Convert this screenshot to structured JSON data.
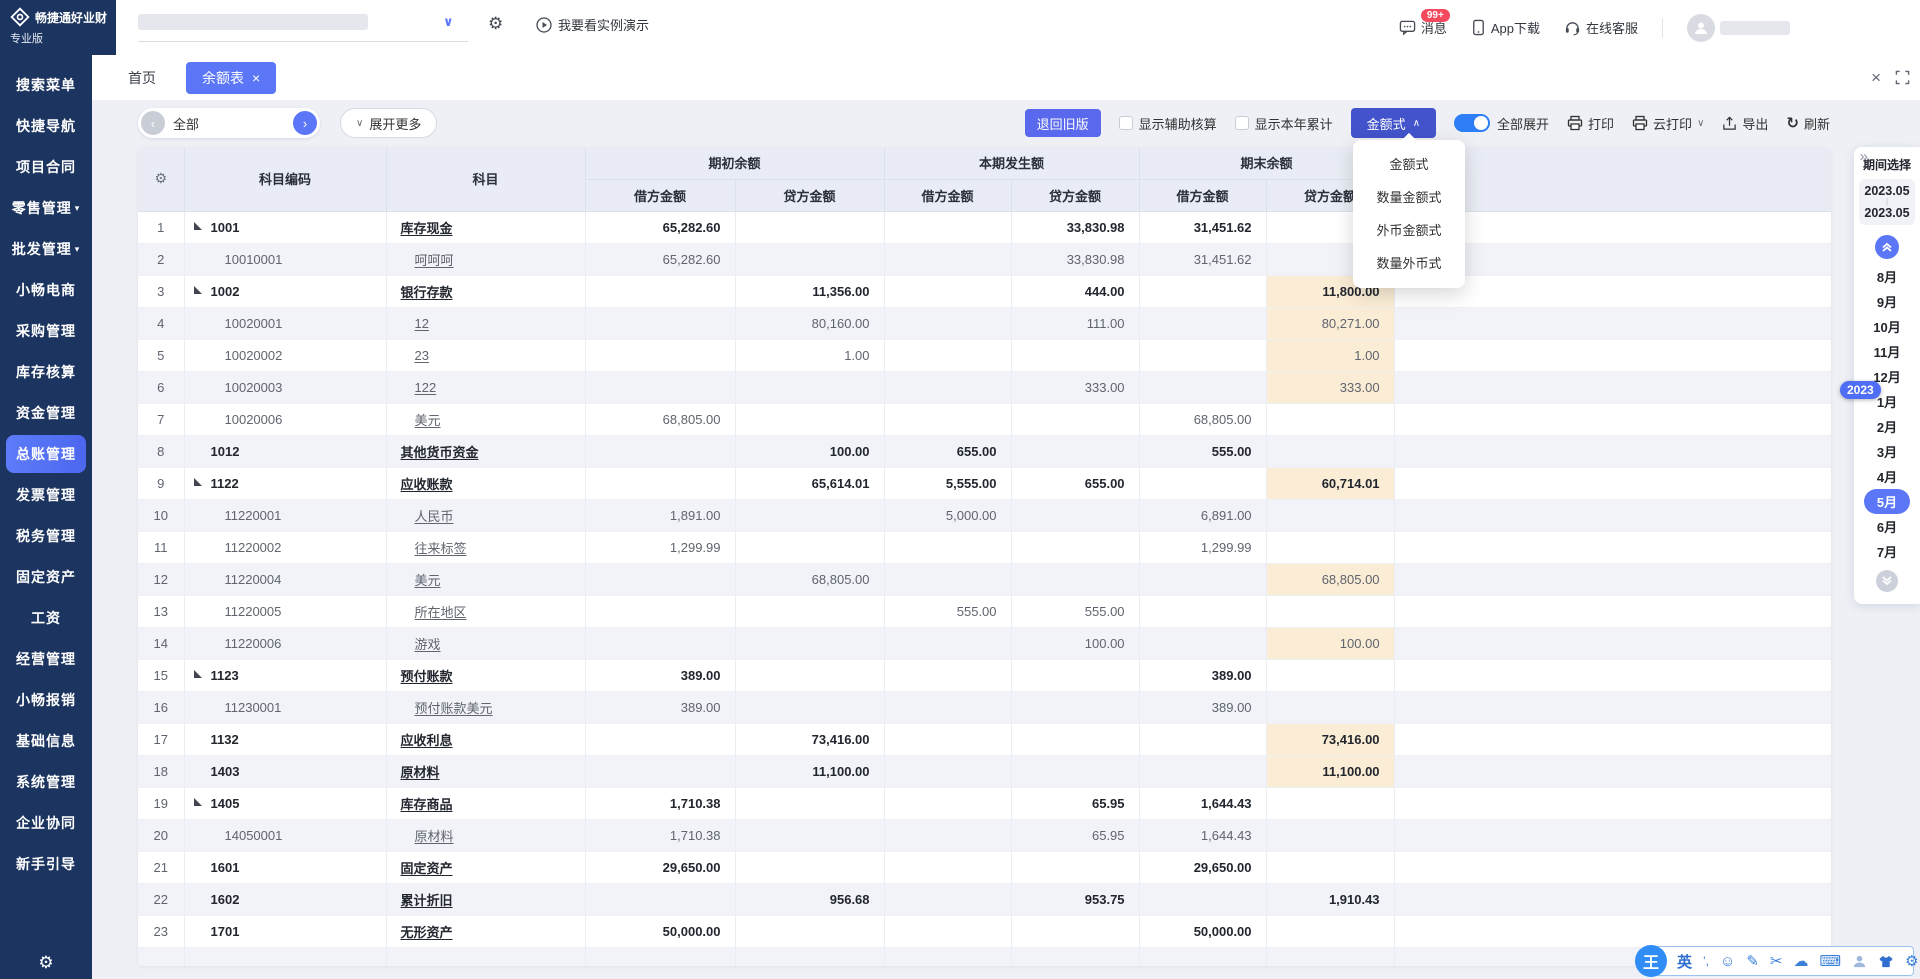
{
  "app": {
    "name": "畅捷通好业财",
    "edition": "专业版"
  },
  "topbar": {
    "demo_text": "我要看实例演示",
    "messages_label": "消息",
    "messages_badge": "99+",
    "app_download_label": "App下载",
    "support_label": "在线客服"
  },
  "sidebar": {
    "items": [
      {
        "label": "搜索菜单"
      },
      {
        "label": "快捷导航"
      },
      {
        "label": "项目合同"
      },
      {
        "label": "零售管理",
        "arrow": true
      },
      {
        "label": "批发管理",
        "arrow": true
      },
      {
        "label": "小畅电商"
      },
      {
        "label": "采购管理"
      },
      {
        "label": "库存核算"
      },
      {
        "label": "资金管理"
      },
      {
        "label": "总账管理",
        "active": true
      },
      {
        "label": "发票管理"
      },
      {
        "label": "税务管理"
      },
      {
        "label": "固定资产"
      },
      {
        "label": "工资"
      },
      {
        "label": "经营管理"
      },
      {
        "label": "小畅报销"
      },
      {
        "label": "基础信息"
      },
      {
        "label": "系统管理"
      },
      {
        "label": "企业协同"
      },
      {
        "label": "新手引导"
      }
    ]
  },
  "tabs": [
    {
      "label": "首页",
      "active": false,
      "closable": false
    },
    {
      "label": "余额表",
      "active": true,
      "closable": true
    }
  ],
  "toolbar": {
    "scope_value": "全部",
    "expand_more": "展开更多",
    "back_to_old": "退回旧版",
    "checkbox_aux": "显示辅助核算",
    "checkbox_ytd": "显示本年累计",
    "format_button": "金额式",
    "expand_all": "全部展开",
    "print": "打印",
    "cloud_print": "云打印",
    "export": "导出",
    "refresh": "刷新"
  },
  "format_menu": {
    "items": [
      "金额式",
      "数量金额式",
      "外币金额式",
      "数量外币式"
    ]
  },
  "balance_table": {
    "header": {
      "code": "科目编码",
      "subject": "科目",
      "groups": [
        "期初余额",
        "本期发生额",
        "期末余额"
      ],
      "debit": "借方金额",
      "credit": "贷方金额"
    },
    "rows": [
      {
        "no": 1,
        "code": "1001",
        "name": "库存现金",
        "parent": true,
        "expandable": true,
        "highlight": false,
        "values": [
          "65,282.60",
          "",
          "",
          "33,830.98",
          "31,451.62",
          ""
        ]
      },
      {
        "no": 2,
        "code": "10010001",
        "name": "呵呵呵",
        "parent": false,
        "expandable": false,
        "highlight": false,
        "values": [
          "65,282.60",
          "",
          "",
          "33,830.98",
          "31,451.62",
          ""
        ]
      },
      {
        "no": 3,
        "code": "1002",
        "name": "银行存款",
        "parent": true,
        "expandable": true,
        "highlight": true,
        "values": [
          "",
          "11,356.00",
          "",
          "444.00",
          "",
          "11,800.00"
        ]
      },
      {
        "no": 4,
        "code": "10020001",
        "name": "12",
        "parent": false,
        "expandable": false,
        "highlight": true,
        "values": [
          "",
          "80,160.00",
          "",
          "111.00",
          "",
          "80,271.00"
        ]
      },
      {
        "no": 5,
        "code": "10020002",
        "name": "23",
        "parent": false,
        "expandable": false,
        "highlight": true,
        "values": [
          "",
          "1.00",
          "",
          "",
          "",
          "1.00"
        ]
      },
      {
        "no": 6,
        "code": "10020003",
        "name": "122",
        "parent": false,
        "expandable": false,
        "highlight": true,
        "values": [
          "",
          "",
          "",
          "333.00",
          "",
          "333.00"
        ]
      },
      {
        "no": 7,
        "code": "10020006",
        "name": "美元",
        "parent": false,
        "expandable": false,
        "highlight": false,
        "values": [
          "68,805.00",
          "",
          "",
          "",
          "68,805.00",
          ""
        ]
      },
      {
        "no": 8,
        "code": "1012",
        "name": "其他货币资金",
        "parent": true,
        "expandable": false,
        "highlight": false,
        "values": [
          "",
          "100.00",
          "655.00",
          "",
          "555.00",
          ""
        ]
      },
      {
        "no": 9,
        "code": "1122",
        "name": "应收账款",
        "parent": true,
        "expandable": true,
        "highlight": true,
        "values": [
          "",
          "65,614.01",
          "5,555.00",
          "655.00",
          "",
          "60,714.01"
        ]
      },
      {
        "no": 10,
        "code": "11220001",
        "name": "人民币",
        "parent": false,
        "expandable": false,
        "highlight": false,
        "values": [
          "1,891.00",
          "",
          "5,000.00",
          "",
          "6,891.00",
          ""
        ]
      },
      {
        "no": 11,
        "code": "11220002",
        "name": "往来标签",
        "parent": false,
        "expandable": false,
        "highlight": false,
        "values": [
          "1,299.99",
          "",
          "",
          "",
          "1,299.99",
          ""
        ]
      },
      {
        "no": 12,
        "code": "11220004",
        "name": "美元",
        "parent": false,
        "expandable": false,
        "highlight": true,
        "values": [
          "",
          "68,805.00",
          "",
          "",
          "",
          "68,805.00"
        ]
      },
      {
        "no": 13,
        "code": "11220005",
        "name": "所在地区",
        "parent": false,
        "expandable": false,
        "highlight": false,
        "values": [
          "",
          "",
          "555.00",
          "555.00",
          "",
          ""
        ]
      },
      {
        "no": 14,
        "code": "11220006",
        "name": "游戏",
        "parent": false,
        "expandable": false,
        "highlight": true,
        "values": [
          "",
          "",
          "",
          "100.00",
          "",
          "100.00"
        ]
      },
      {
        "no": 15,
        "code": "1123",
        "name": "预付账款",
        "parent": true,
        "expandable": true,
        "highlight": false,
        "values": [
          "389.00",
          "",
          "",
          "",
          "389.00",
          ""
        ]
      },
      {
        "no": 16,
        "code": "11230001",
        "name": "预付账款美元",
        "parent": false,
        "expandable": false,
        "highlight": false,
        "values": [
          "389.00",
          "",
          "",
          "",
          "389.00",
          ""
        ]
      },
      {
        "no": 17,
        "code": "1132",
        "name": "应收利息",
        "parent": true,
        "expandable": false,
        "highlight": true,
        "values": [
          "",
          "73,416.00",
          "",
          "",
          "",
          "73,416.00"
        ]
      },
      {
        "no": 18,
        "code": "1403",
        "name": "原材料",
        "parent": true,
        "expandable": false,
        "highlight": true,
        "values": [
          "",
          "11,100.00",
          "",
          "",
          "",
          "11,100.00"
        ]
      },
      {
        "no": 19,
        "code": "1405",
        "name": "库存商品",
        "parent": true,
        "expandable": true,
        "highlight": false,
        "values": [
          "1,710.38",
          "",
          "",
          "65.95",
          "1,644.43",
          ""
        ]
      },
      {
        "no": 20,
        "code": "14050001",
        "name": "原材料",
        "parent": false,
        "expandable": false,
        "highlight": false,
        "values": [
          "1,710.38",
          "",
          "",
          "65.95",
          "1,644.43",
          ""
        ]
      },
      {
        "no": 21,
        "code": "1601",
        "name": "固定资产",
        "parent": true,
        "expandable": false,
        "highlight": false,
        "values": [
          "29,650.00",
          "",
          "",
          "",
          "29,650.00",
          ""
        ]
      },
      {
        "no": 22,
        "code": "1602",
        "name": "累计折旧",
        "parent": true,
        "expandable": false,
        "highlight": false,
        "values": [
          "",
          "956.68",
          "",
          "953.75",
          "",
          "1,910.43"
        ]
      },
      {
        "no": 23,
        "code": "1701",
        "name": "无形资产",
        "parent": true,
        "expandable": false,
        "highlight": false,
        "values": [
          "50,000.00",
          "",
          "",
          "",
          "50,000.00",
          ""
        ]
      }
    ]
  },
  "period_panel": {
    "title": "期间选择",
    "range_start": "2023.05",
    "range_end": "2023.05",
    "year_badge": "2023",
    "months": [
      "8月",
      "9月",
      "10月",
      "11月",
      "12月",
      "1月",
      "2月",
      "3月",
      "4月",
      "5月",
      "6月",
      "7月"
    ],
    "selected_month": "5月"
  },
  "ime_bar": {
    "logo": "王",
    "lang": "英",
    "punct": "’,"
  },
  "colors": {
    "accent_blue": "#5b77f7",
    "sidebar_bg": "#1c3560",
    "highlight_cell": "#fbedd5",
    "badge_red": "#f5495e",
    "button_primary": "#5968ed",
    "button_format": "#4353cb",
    "toggle_on": "#2e7ef7"
  }
}
